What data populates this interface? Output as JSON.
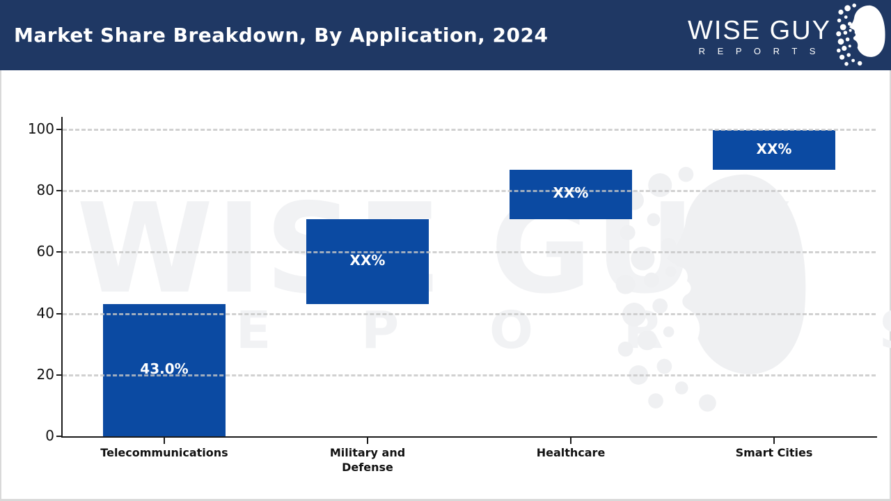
{
  "header": {
    "title": "Market Share Breakdown, By Application, 2024",
    "logo": {
      "name": "WISE GUY",
      "sub": "R E P O R T S"
    }
  },
  "watermark": {
    "big_text": "WISE GUY",
    "sub_text": "R E P O R T S"
  },
  "chart_data": {
    "type": "bar",
    "subtype": "waterfall",
    "title": "Market Share Breakdown, By Application, 2024",
    "categories": [
      "Telecommunications",
      "Military and Defense",
      "Healthcare",
      "Smart Cities"
    ],
    "x_tick_lines": [
      [
        "Telecommunications"
      ],
      [
        "Military and",
        "Defense"
      ],
      [
        "Healthcare"
      ],
      [
        "Smart Cities"
      ]
    ],
    "segments": [
      {
        "category": "Telecommunications",
        "start": 0,
        "end": 43.0,
        "label": "43.0%"
      },
      {
        "category": "Military and Defense",
        "start": 43.0,
        "end": 70.7,
        "label": "XX%"
      },
      {
        "category": "Healthcare",
        "start": 70.7,
        "end": 86.9,
        "label": "XX%"
      },
      {
        "category": "Smart Cities",
        "start": 86.9,
        "end": 99.7,
        "label": "XX%"
      }
    ],
    "y_ticks": [
      0,
      20,
      40,
      60,
      80,
      100
    ],
    "ylim": [
      0,
      103.8
    ],
    "xlabel": "",
    "ylabel": "",
    "legend": "none",
    "grid": "horizontal-dashed",
    "bar_value_labels_inside": true
  },
  "colors": {
    "header_bg": "#1f3864",
    "bar": "#0b4aa2",
    "bar_label": "#ffffff",
    "grid": "#c5c5c5",
    "axis": "#1a1a1a",
    "tick_label": "#111111",
    "watermark": "#f1f2f4",
    "page_border": "#d9d9d9"
  }
}
